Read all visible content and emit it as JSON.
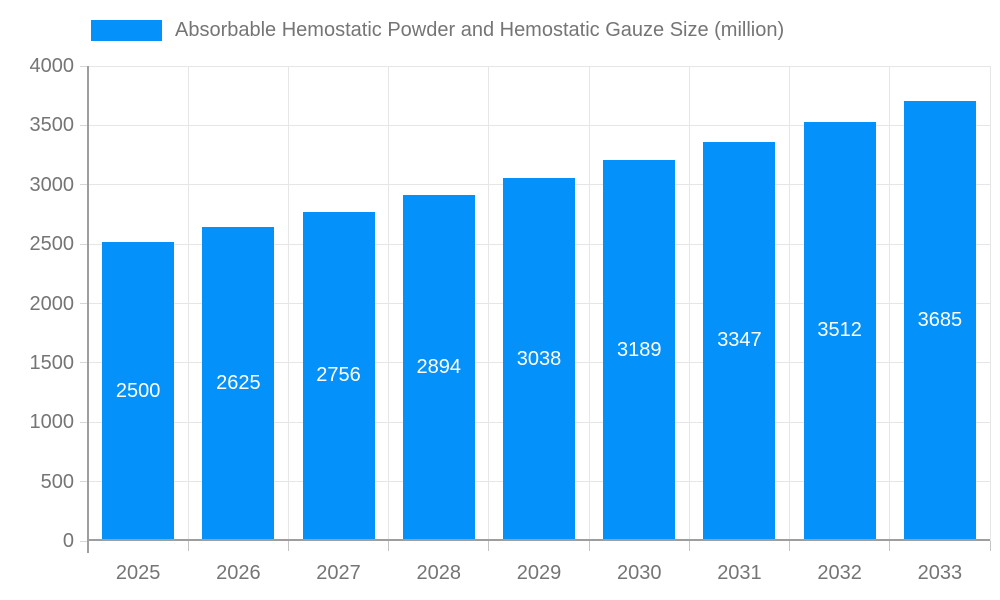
{
  "legend": {
    "label": "Absorbable Hemostatic Powder and Hemostatic Gauze Size (million)",
    "swatch_color": "#0591fa"
  },
  "chart_data": {
    "type": "bar",
    "title": "Absorbable Hemostatic Powder and Hemostatic Gauze Size (million)",
    "categories": [
      "2025",
      "2026",
      "2027",
      "2028",
      "2029",
      "2030",
      "2031",
      "2032",
      "2033"
    ],
    "values": [
      2500,
      2625,
      2756,
      2894,
      3038,
      3189,
      3347,
      3512,
      3685
    ],
    "series": [
      {
        "name": "Absorbable Hemostatic Powder and Hemostatic Gauze Size (million)",
        "values": [
          2500,
          2625,
          2756,
          2894,
          3038,
          3189,
          3347,
          3512,
          3685
        ]
      }
    ],
    "xlabel": "",
    "ylabel": "",
    "ylim": [
      0,
      4000
    ],
    "yticks": [
      0,
      500,
      1000,
      1500,
      2000,
      2500,
      3000,
      3500,
      4000
    ],
    "grid": true,
    "legend_position": "top-left",
    "bar_color": "#0591fa",
    "value_label_color": "#ffffff",
    "axis_text_color": "#757575",
    "gridline_color": "#e6e6e6",
    "axis_line_color": "#9e9e9e",
    "background_color": "#ffffff"
  }
}
